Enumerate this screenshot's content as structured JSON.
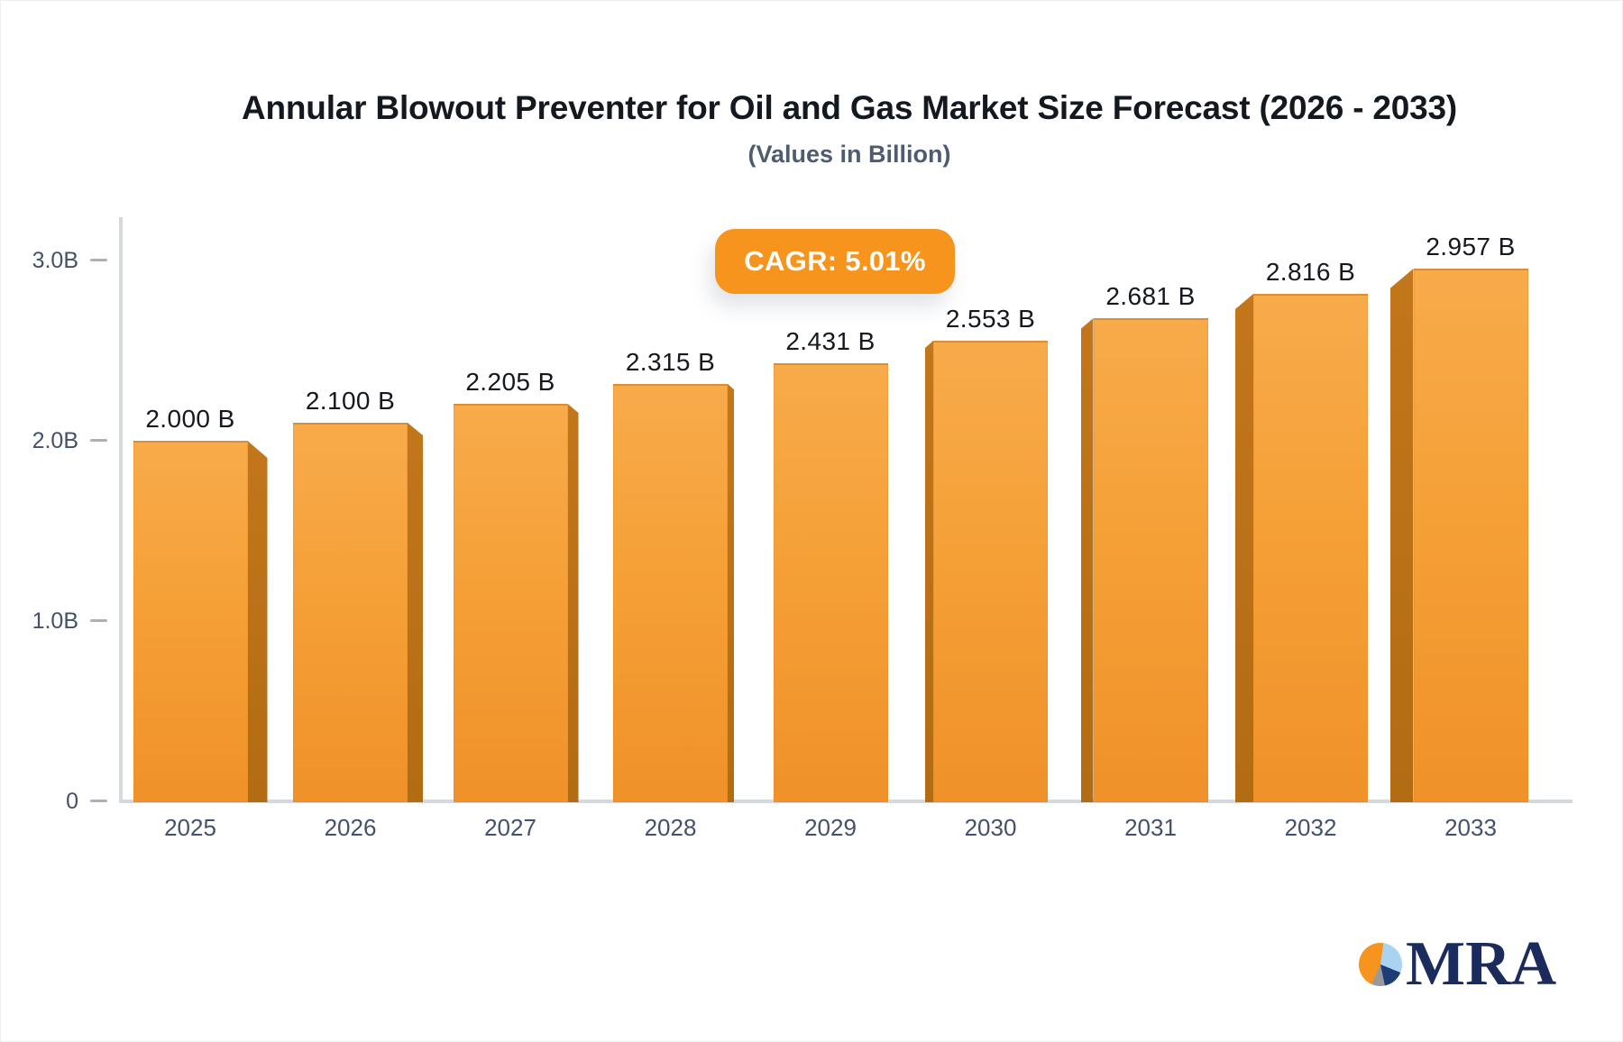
{
  "header": {
    "title": "Annular Blowout Preventer for Oil and Gas Market Size Forecast (2026 - 2033)",
    "subtitle": "(Values in Billion)"
  },
  "badge": {
    "label": "CAGR: 5.01%"
  },
  "logo": {
    "text": "MRA",
    "icon": "pie-chart-icon"
  },
  "colors": {
    "accent_orange": "#F7941E",
    "bar_face_top": "#F8AB4B",
    "bar_face_mid": "#F5A037",
    "bar_face_bottom": "#F09129",
    "bar_top_edge": "#E08C28",
    "bar_side_top": "#C3761B",
    "bar_side_bottom": "#B26C13",
    "axis_line": "#D5D8DD",
    "tick_dash": "#A9B0BA",
    "axis_label_text": "#44516A",
    "value_label_text": "#15181E",
    "title_text": "#14181F",
    "subtitle_text": "#4D5C70",
    "logo_navy": "#1B2B5B",
    "logo_navy_wedge": "#1E3D76",
    "logo_light_blue": "#A9D3F0",
    "logo_gray": "#98999B"
  },
  "chart_data": {
    "type": "bar",
    "title": "Annular Blowout Preventer for Oil and Gas Market Size Forecast (2026 - 2033)",
    "subtitle": "(Values in Billion)",
    "annotation": "CAGR: 5.01%",
    "unit": "Billion",
    "categories": [
      "2025",
      "2026",
      "2027",
      "2028",
      "2029",
      "2030",
      "2031",
      "2032",
      "2033"
    ],
    "values": [
      2.0,
      2.1,
      2.205,
      2.315,
      2.431,
      2.553,
      2.681,
      2.816,
      2.957
    ],
    "value_labels": [
      "2.000 B",
      "2.100 B",
      "2.205 B",
      "2.315 B",
      "2.431 B",
      "2.553 B",
      "2.681 B",
      "2.816 B",
      "2.957 B"
    ],
    "xlabel": "",
    "ylabel": "",
    "ylim": [
      0,
      3.0
    ],
    "yticks": [
      {
        "label": "3.0B",
        "value": 3.0
      },
      {
        "label": "2.0B",
        "value": 2.0
      },
      {
        "label": "1.0B",
        "value": 1.0
      },
      {
        "label": "0",
        "value": 0.0
      }
    ],
    "grid": false,
    "legend": false,
    "bar_style": "3d-perspective"
  }
}
